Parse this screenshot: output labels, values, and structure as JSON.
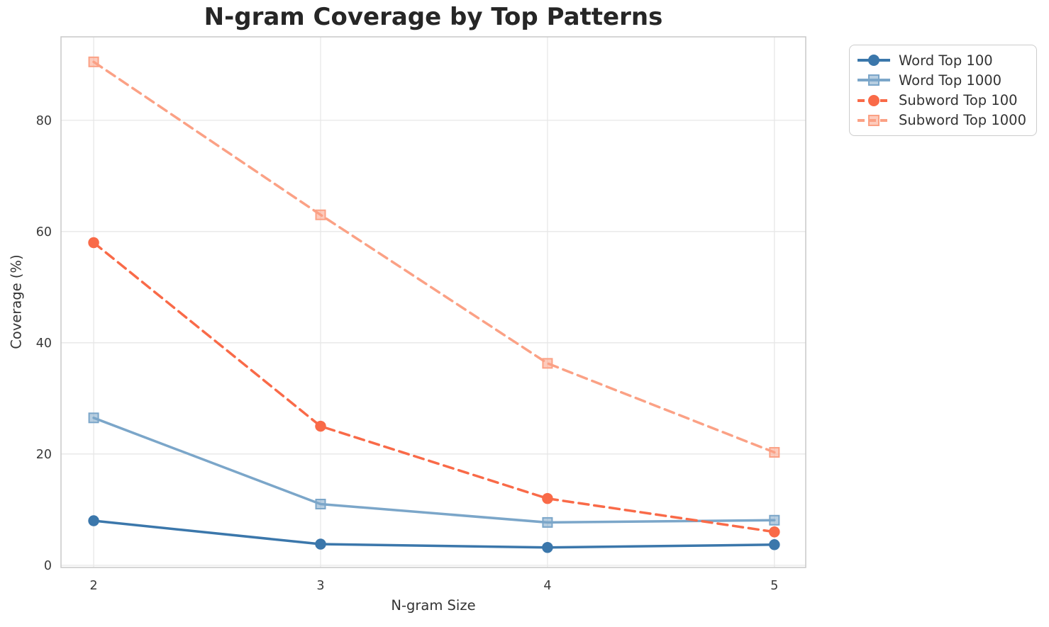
{
  "chart_data": {
    "type": "line",
    "title": "N-gram Coverage by Top Patterns",
    "xlabel": "N-gram Size",
    "ylabel": "Coverage (%)",
    "x": [
      2,
      3,
      4,
      5
    ],
    "xticks": [
      2,
      3,
      4,
      5
    ],
    "yticks": [
      0,
      20,
      40,
      60,
      80
    ],
    "xlim": [
      1.856,
      5.138
    ],
    "ylim": [
      -0.4,
      95.0
    ],
    "grid": true,
    "legend_position": "upper right, outside plot",
    "series": [
      {
        "name": "Word Top 100",
        "values": [
          8.0,
          3.8,
          3.2,
          3.7
        ],
        "color": "#3b77ab",
        "linestyle": "solid",
        "marker": "circle"
      },
      {
        "name": "Word Top 1000",
        "values": [
          26.5,
          11.0,
          7.7,
          8.1
        ],
        "color": "#7ba6c9",
        "linestyle": "solid",
        "marker": "square"
      },
      {
        "name": "Subword Top 100",
        "values": [
          58.0,
          25.0,
          12.0,
          6.0
        ],
        "color": "#f96a48",
        "linestyle": "dashed",
        "marker": "circle"
      },
      {
        "name": "Subword Top 1000",
        "values": [
          90.5,
          63.0,
          36.3,
          20.3
        ],
        "color": "#fba185",
        "linestyle": "dashed",
        "marker": "square"
      }
    ],
    "style": {
      "grid_color": "#e7e7e7",
      "spine_color": "#c9c9c9",
      "tick_color": "#3a3a3a",
      "title_color": "#262626",
      "label_color": "#333333"
    }
  }
}
